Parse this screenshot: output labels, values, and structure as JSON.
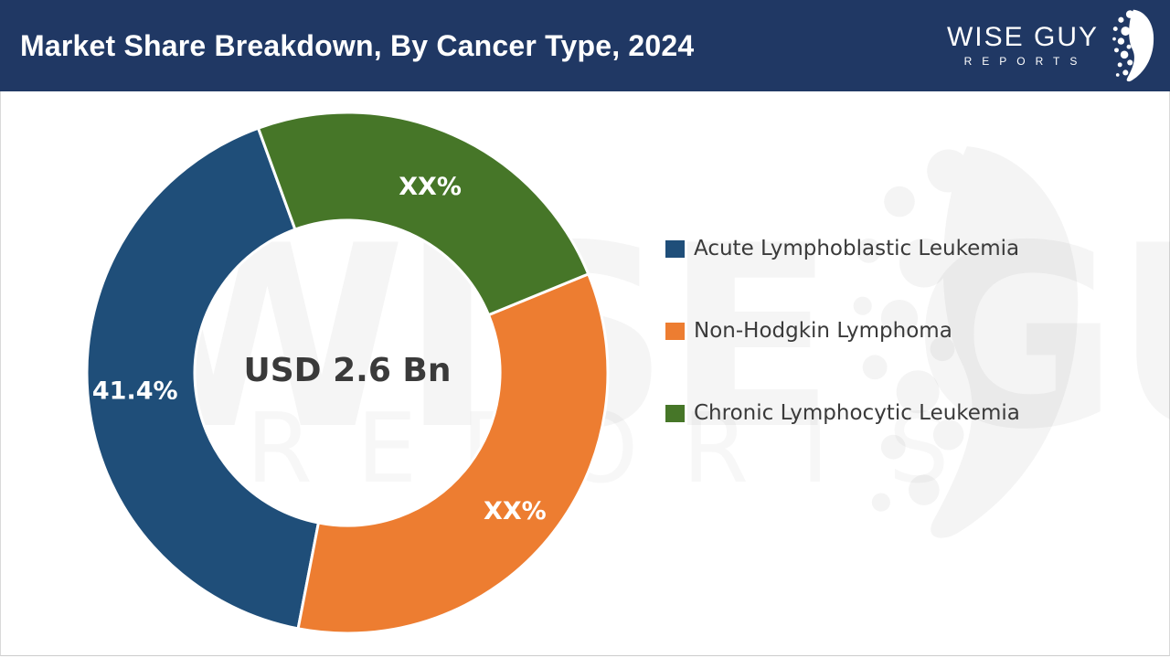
{
  "header": {
    "title": "Market Share Breakdown, By Cancer Type, 2024",
    "bg_color": "#203864",
    "logo": {
      "line1": "WISE GUY",
      "line2": "REPORTS"
    }
  },
  "watermark": {
    "line1": "WISE GUY",
    "line2": "REPORTS"
  },
  "chart_data": {
    "type": "pie",
    "subtype": "donut",
    "title": "Market Share Breakdown, By Cancer Type, 2024",
    "center_label": "USD 2.6 Bn",
    "legend_position": "right",
    "slices": [
      {
        "name": "Acute Lymphoblastic Leukemia",
        "label": "41.4%",
        "value_pct": 41.4,
        "color": "#1F4E79",
        "start_angle": 190.9,
        "end_angle": 340,
        "label_radius": 233
      },
      {
        "name": "Non-Hodgkin Lymphoma",
        "label": "XX%",
        "value_pct": 34.2,
        "color": "#ED7D31",
        "start_angle": 67.7,
        "end_angle": 190.9,
        "label_radius": 237
      },
      {
        "name": "Chronic Lymphocytic Leukemia",
        "label": "XX%",
        "value_pct": 24.4,
        "color": "#467628",
        "start_angle": -20,
        "end_angle": 67.7,
        "label_radius": 224
      }
    ]
  }
}
